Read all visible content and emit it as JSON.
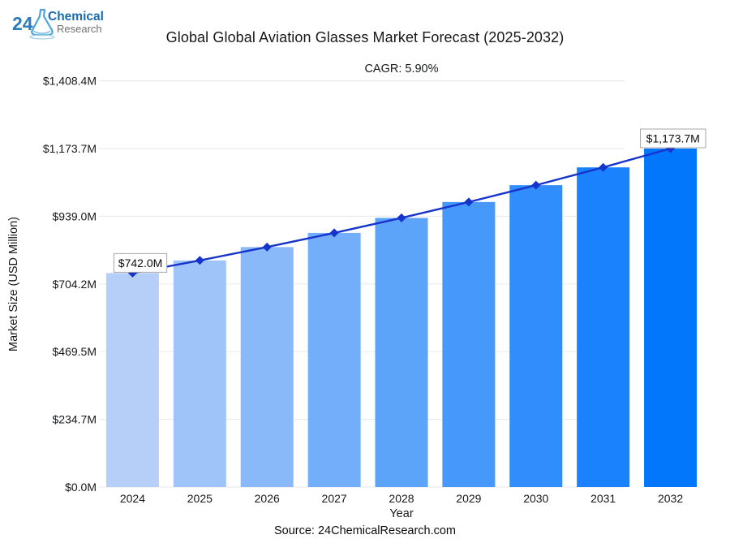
{
  "logo": {
    "number": "24",
    "name_top": "Chemical",
    "name_bottom": "Research",
    "flask_color": "#4fa3d8",
    "number_color": "#2b7bbd",
    "name_top_color": "#1a6cb0",
    "name_bottom_color": "#6f7072"
  },
  "header": {
    "title": "Global Global Aviation Glasses Market Forecast (2025-2032)",
    "subtitle": "CAGR: 5.90%"
  },
  "footer": {
    "source": "Source: 24ChemicalResearch.com"
  },
  "chart_data": {
    "type": "bar",
    "overlay": "line",
    "title": "Global Global Aviation Glasses Market Forecast (2025-2032)",
    "subtitle": "CAGR: 5.90%",
    "xlabel": "Year",
    "ylabel": "Market Size (USD Million)",
    "categories": [
      "2024",
      "2025",
      "2026",
      "2027",
      "2028",
      "2029",
      "2030",
      "2031",
      "2032"
    ],
    "values": [
      742.0,
      785.8,
      832.1,
      881.2,
      933.2,
      988.3,
      1046.6,
      1108.4,
      1173.7
    ],
    "ylim": [
      0,
      1408.4
    ],
    "yticks": [
      0.0,
      234.7,
      469.5,
      704.2,
      939.0,
      1173.7,
      1408.4
    ],
    "ytick_labels": [
      "$0.0M",
      "$234.7M",
      "$469.5M",
      "$704.2M",
      "$939.0M",
      "$1,173.7M",
      "$1,408.4M"
    ],
    "bar_colors": [
      "#b5cff8",
      "#9fc4f9",
      "#89b9f9",
      "#72aefa",
      "#5ca3fa",
      "#4698fb",
      "#308dfb",
      "#1982fc",
      "#0377fc"
    ],
    "line_color": "#1634cc",
    "marker": "diamond",
    "grid": true,
    "grid_color": "#ececec",
    "annotation_box_border": "#a6a6a6",
    "annotations": [
      {
        "category": "2024",
        "label": "$742.0M"
      },
      {
        "category": "2032",
        "label": "$1,173.7M"
      }
    ],
    "legend_position": "none"
  }
}
